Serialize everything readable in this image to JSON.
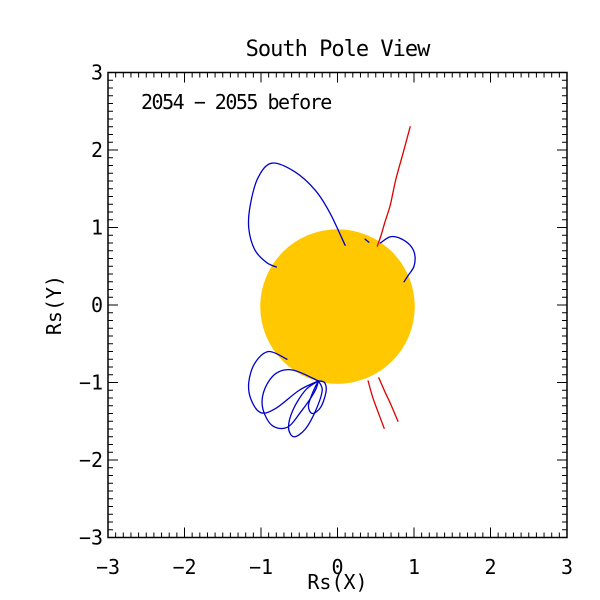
{
  "page": {
    "background": "#FFFFFF"
  },
  "chart_data": {
    "type": "line",
    "title": "South Pole View",
    "annotation": "2054 − 2055 before",
    "xlabel": "Rs(X)",
    "ylabel": "Rs(Y)",
    "xlim": [
      -3,
      3
    ],
    "ylim": [
      -3,
      3
    ],
    "minor_tick_step": 0.1,
    "grid": false,
    "axes_color": "#000000",
    "x_ticks": [
      {
        "value": -3,
        "label": "−3"
      },
      {
        "value": -2,
        "label": "−2"
      },
      {
        "value": -1,
        "label": "−1"
      },
      {
        "value": 0,
        "label": "0"
      },
      {
        "value": 1,
        "label": "1"
      },
      {
        "value": 2,
        "label": "2"
      },
      {
        "value": 3,
        "label": "3"
      }
    ],
    "y_ticks": [
      {
        "value": -3,
        "label": "−3"
      },
      {
        "value": -2,
        "label": "−2"
      },
      {
        "value": -1,
        "label": "−1"
      },
      {
        "value": 0,
        "label": "0"
      },
      {
        "value": 1,
        "label": "1"
      },
      {
        "value": 2,
        "label": "2"
      },
      {
        "value": 3,
        "label": "3"
      }
    ],
    "sun": {
      "x": 0,
      "y": -0.02,
      "radius": 1.01,
      "color": "#FFC800"
    },
    "series": [
      {
        "name": "blue-north-loop",
        "color": "#0000CC",
        "points": [
          [
            0.1,
            0.77
          ],
          [
            -0.1,
            1.19
          ],
          [
            -0.29,
            1.48
          ],
          [
            -0.56,
            1.72
          ],
          [
            -0.86,
            1.83
          ],
          [
            -1.04,
            1.64
          ],
          [
            -1.14,
            1.29
          ],
          [
            -1.16,
            0.99
          ],
          [
            -1.08,
            0.71
          ],
          [
            -0.93,
            0.55
          ],
          [
            -0.8,
            0.49
          ]
        ]
      },
      {
        "name": "blue-east-loop",
        "color": "#0000CC",
        "points": [
          [
            0.56,
            0.8
          ],
          [
            0.69,
            0.88
          ],
          [
            0.82,
            0.86
          ],
          [
            0.95,
            0.77
          ],
          [
            1.01,
            0.65
          ],
          [
            1.0,
            0.5
          ],
          [
            0.93,
            0.39
          ],
          [
            0.87,
            0.3
          ]
        ]
      },
      {
        "name": "blue-surface-dash",
        "color": "#0000CC",
        "points": [
          [
            0.36,
            0.85
          ],
          [
            0.41,
            0.81
          ]
        ]
      },
      {
        "name": "blue-south-petal-1",
        "color": "#0000CC",
        "points": [
          [
            -0.66,
            -0.7
          ],
          [
            -0.9,
            -0.6
          ],
          [
            -1.08,
            -0.75
          ],
          [
            -1.16,
            -1.0
          ],
          [
            -1.13,
            -1.22
          ],
          [
            -1.0,
            -1.39
          ],
          [
            -0.8,
            -1.33
          ],
          [
            -0.5,
            -1.1
          ],
          [
            -0.25,
            -0.98
          ]
        ]
      },
      {
        "name": "blue-south-petal-2",
        "color": "#0000CC",
        "points": [
          [
            -0.25,
            -0.98
          ],
          [
            -0.58,
            -0.84
          ],
          [
            -0.8,
            -0.88
          ],
          [
            -0.95,
            -1.08
          ],
          [
            -0.98,
            -1.32
          ],
          [
            -0.86,
            -1.55
          ],
          [
            -0.66,
            -1.58
          ],
          [
            -0.48,
            -1.38
          ],
          [
            -0.3,
            -1.12
          ],
          [
            -0.25,
            -0.98
          ]
        ]
      },
      {
        "name": "blue-south-petal-3",
        "color": "#0000CC",
        "points": [
          [
            -0.25,
            -0.98
          ],
          [
            -0.42,
            -1.1
          ],
          [
            -0.58,
            -1.35
          ],
          [
            -0.64,
            -1.58
          ],
          [
            -0.57,
            -1.7
          ],
          [
            -0.42,
            -1.6
          ],
          [
            -0.28,
            -1.35
          ],
          [
            -0.2,
            -1.1
          ],
          [
            -0.25,
            -0.98
          ]
        ]
      },
      {
        "name": "blue-south-petal-4",
        "color": "#0000CC",
        "points": [
          [
            -0.25,
            -0.98
          ],
          [
            -0.32,
            -1.12
          ],
          [
            -0.38,
            -1.3
          ],
          [
            -0.33,
            -1.4
          ],
          [
            -0.22,
            -1.32
          ],
          [
            -0.15,
            -1.12
          ],
          [
            -0.17,
            -1.0
          ],
          [
            -0.25,
            -0.98
          ]
        ]
      },
      {
        "name": "red-north-line",
        "color": "#DD0000",
        "points": [
          [
            0.95,
            2.3
          ],
          [
            0.86,
            1.97
          ],
          [
            0.76,
            1.61
          ],
          [
            0.69,
            1.29
          ],
          [
            0.62,
            1.07
          ],
          [
            0.57,
            0.9
          ],
          [
            0.52,
            0.76
          ]
        ]
      },
      {
        "name": "red-south-line-a",
        "color": "#DD0000",
        "points": [
          [
            0.4,
            -0.98
          ],
          [
            0.46,
            -1.19
          ],
          [
            0.53,
            -1.38
          ],
          [
            0.61,
            -1.59
          ]
        ]
      },
      {
        "name": "red-south-line-b",
        "color": "#DD0000",
        "points": [
          [
            0.54,
            -0.94
          ],
          [
            0.62,
            -1.12
          ],
          [
            0.7,
            -1.29
          ],
          [
            0.79,
            -1.5
          ]
        ]
      }
    ]
  }
}
